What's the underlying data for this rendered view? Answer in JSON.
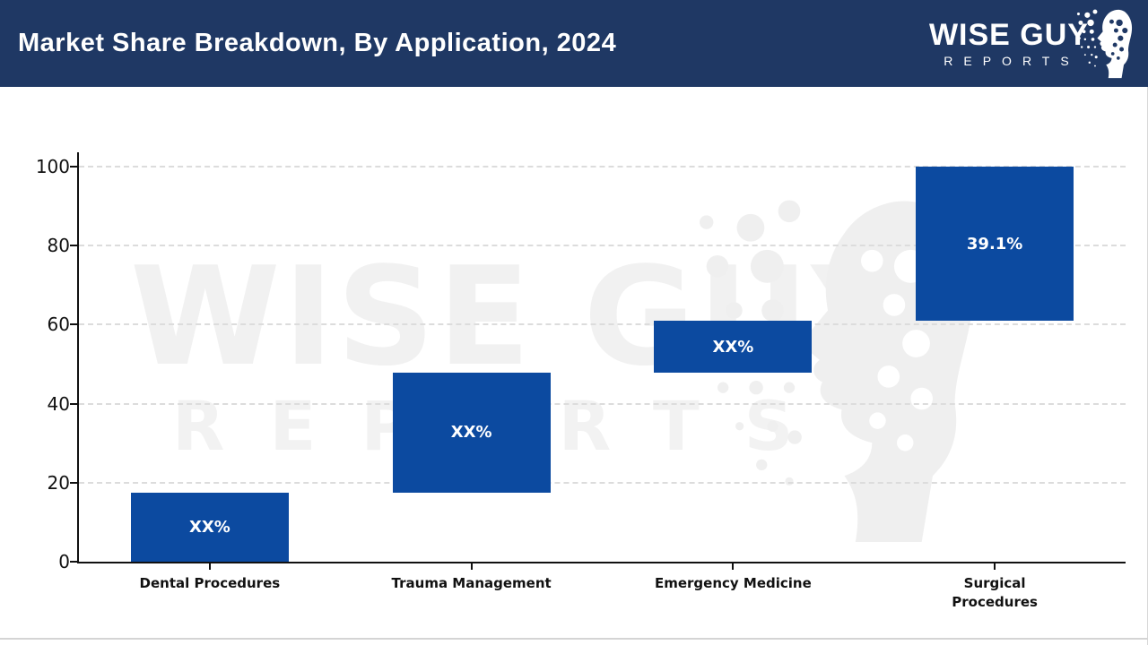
{
  "header": {
    "title": "Market Share Breakdown, By Application, 2024",
    "bg_color": "#1f3864",
    "logo_line1": "WISE GUY",
    "logo_line2": "REPORTS"
  },
  "watermark": {
    "line1": "WISE GUY",
    "line2": "REPORTS"
  },
  "chart_data": {
    "type": "bar",
    "subtype": "floating-segment-breakdown",
    "title": "Market Share Breakdown, By Application, 2024",
    "categories": [
      "Dental Procedures",
      "Trauma Management",
      "Emergency Medicine",
      "Surgical\nProcedures"
    ],
    "series": [
      {
        "name": "Dental Procedures",
        "start": 0,
        "end": 17.5,
        "label": "XX%"
      },
      {
        "name": "Trauma Management",
        "start": 17.5,
        "end": 47.9,
        "label": "XX%"
      },
      {
        "name": "Emergency Medicine",
        "start": 47.9,
        "end": 60.9,
        "label": "XX%"
      },
      {
        "name": "Surgical Procedures",
        "start": 60.9,
        "end": 100,
        "label": "39.1%"
      }
    ],
    "bar_color": "#0c4aa0",
    "label_color": "#ffffff",
    "xlabel": "",
    "ylabel": "",
    "ylim": [
      0,
      100
    ],
    "yticks": [
      0,
      20,
      40,
      60,
      80,
      100
    ],
    "grid": "horizontal-dashed",
    "legend": "none"
  }
}
